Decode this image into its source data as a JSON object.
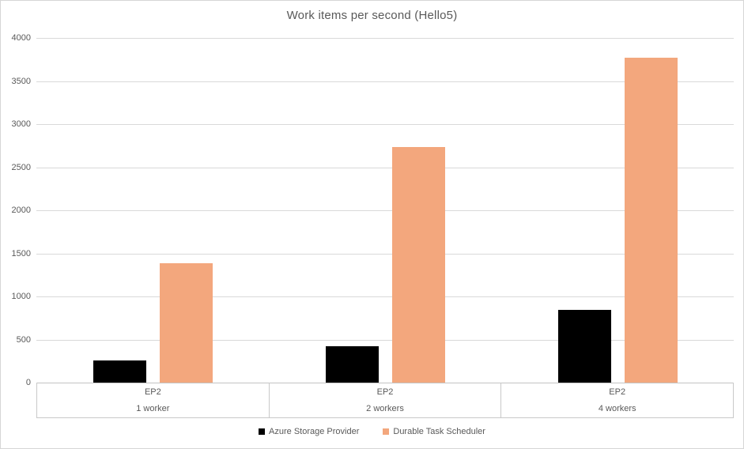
{
  "title": "Work items per second (Hello5)",
  "colors": {
    "series_azure_storage_provider": "#000000",
    "series_durable_task_scheduler": "#f3a77d",
    "gridline": "#d9d9d9",
    "axis_border": "#c9c9c9",
    "text": "#595959"
  },
  "chart_data": {
    "type": "bar",
    "title": "Work items per second (Hello5)",
    "categories": [
      {
        "top": "EP2",
        "bottom": "1 worker"
      },
      {
        "top": "EP2",
        "bottom": "2 workers"
      },
      {
        "top": "EP2",
        "bottom": "4 workers"
      }
    ],
    "series": [
      {
        "name": "Azure Storage Provider",
        "color": "#000000",
        "values": [
          260,
          420,
          840
        ]
      },
      {
        "name": "Durable Task Scheduler",
        "color": "#f3a77d",
        "values": [
          1390,
          2730,
          3770
        ]
      }
    ],
    "ylim": [
      0,
      4000
    ],
    "ytick_step": 500,
    "yticks": [
      "0",
      "500",
      "1000",
      "1500",
      "2000",
      "2500",
      "3000",
      "3500",
      "4000"
    ],
    "grid": true,
    "legend_position": "bottom",
    "xlabel": "",
    "ylabel": ""
  }
}
